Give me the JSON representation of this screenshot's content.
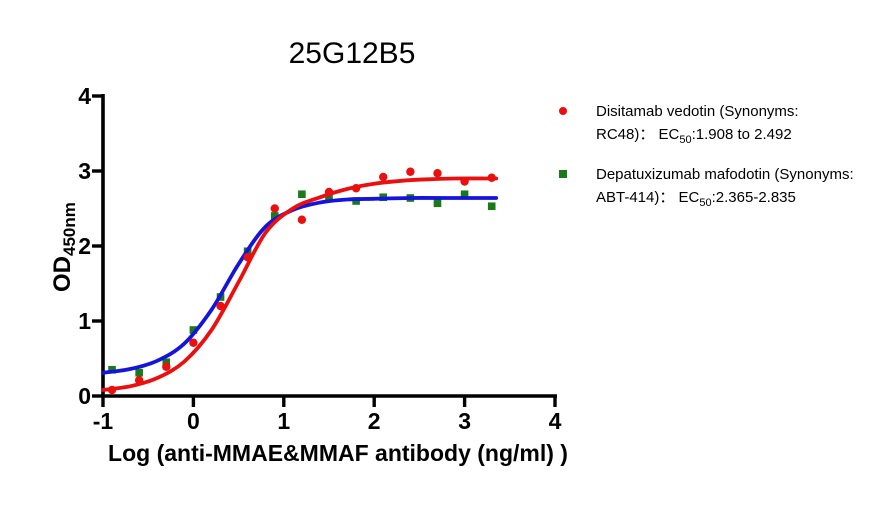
{
  "title": "25G12B5",
  "axes": {
    "xlabel": "Log (anti-MMAE&MMAF antibody (ng/ml) )",
    "ylabel_main": "OD",
    "ylabel_sub": "450nm",
    "x_ticks": [
      -1,
      0,
      1,
      2,
      3,
      4
    ],
    "y_ticks": [
      0,
      1,
      2,
      3,
      4
    ]
  },
  "legend": {
    "items": [
      {
        "marker": "circle",
        "color": "#EB1010",
        "line1": "Disitamab vedotin (Synonyms:",
        "line2_prefix": "RC48)： EC",
        "line2_sub": "50",
        "line2_suffix": ":1.908 to 2.492"
      },
      {
        "marker": "square",
        "color": "#1A7A1A",
        "line1": "Depatuxizumab mafodotin (Synonyms:",
        "line2_prefix": "ABT-414)： EC",
        "line2_sub": "50",
        "line2_suffix": ":2.365-2.835"
      }
    ]
  },
  "chart_data": {
    "type": "scatter",
    "title": "25G12B5",
    "xlabel": "Log (anti-MMAE&MMAF antibody (ng/ml) )",
    "ylabel": "OD450nm",
    "xlim": [
      -1,
      4
    ],
    "ylim": [
      0,
      4
    ],
    "grid": false,
    "legend_position": "right",
    "x": [
      -0.9,
      -0.6,
      -0.3,
      0,
      0.3,
      0.6,
      0.9,
      1.2,
      1.5,
      1.8,
      2.1,
      2.4,
      2.7,
      3.0,
      3.3
    ],
    "series": [
      {
        "name": "Disitamab vedotin (Synonyms: RC48)",
        "ec50": "1.908 to 2.492",
        "marker": "circle",
        "marker_color": "#EB1010",
        "line_color": "#EB1010",
        "values": [
          0.08,
          0.21,
          0.39,
          0.71,
          1.2,
          1.85,
          2.5,
          2.35,
          2.72,
          2.77,
          2.92,
          2.99,
          2.97,
          2.86,
          2.91
        ],
        "curve": [
          [
            -1,
            0.08
          ],
          [
            -0.7,
            0.13
          ],
          [
            -0.4,
            0.24
          ],
          [
            -0.1,
            0.46
          ],
          [
            0.2,
            0.88
          ],
          [
            0.5,
            1.52
          ],
          [
            0.8,
            2.18
          ],
          [
            1.1,
            2.5
          ],
          [
            1.4,
            2.65
          ],
          [
            1.7,
            2.76
          ],
          [
            2.0,
            2.83
          ],
          [
            2.3,
            2.87
          ],
          [
            2.6,
            2.89
          ],
          [
            2.9,
            2.9
          ],
          [
            3.35,
            2.9
          ]
        ]
      },
      {
        "name": "Depatuxizumab mafodotin (Synonyms: ABT-414)",
        "ec50": "2.365-2.835",
        "marker": "square",
        "marker_color": "#1A7A1A",
        "line_color": "#1414DC",
        "values": [
          0.35,
          0.31,
          0.45,
          0.88,
          1.32,
          1.93,
          2.4,
          2.69,
          2.63,
          2.6,
          2.65,
          2.64,
          2.57,
          2.69,
          2.53
        ],
        "curve": [
          [
            -1,
            0.31
          ],
          [
            -0.7,
            0.36
          ],
          [
            -0.4,
            0.47
          ],
          [
            -0.1,
            0.7
          ],
          [
            0.2,
            1.15
          ],
          [
            0.5,
            1.76
          ],
          [
            0.8,
            2.26
          ],
          [
            1.1,
            2.48
          ],
          [
            1.4,
            2.58
          ],
          [
            1.7,
            2.62
          ],
          [
            2.0,
            2.63
          ],
          [
            2.4,
            2.64
          ],
          [
            2.8,
            2.64
          ],
          [
            3.35,
            2.64
          ]
        ]
      }
    ]
  }
}
